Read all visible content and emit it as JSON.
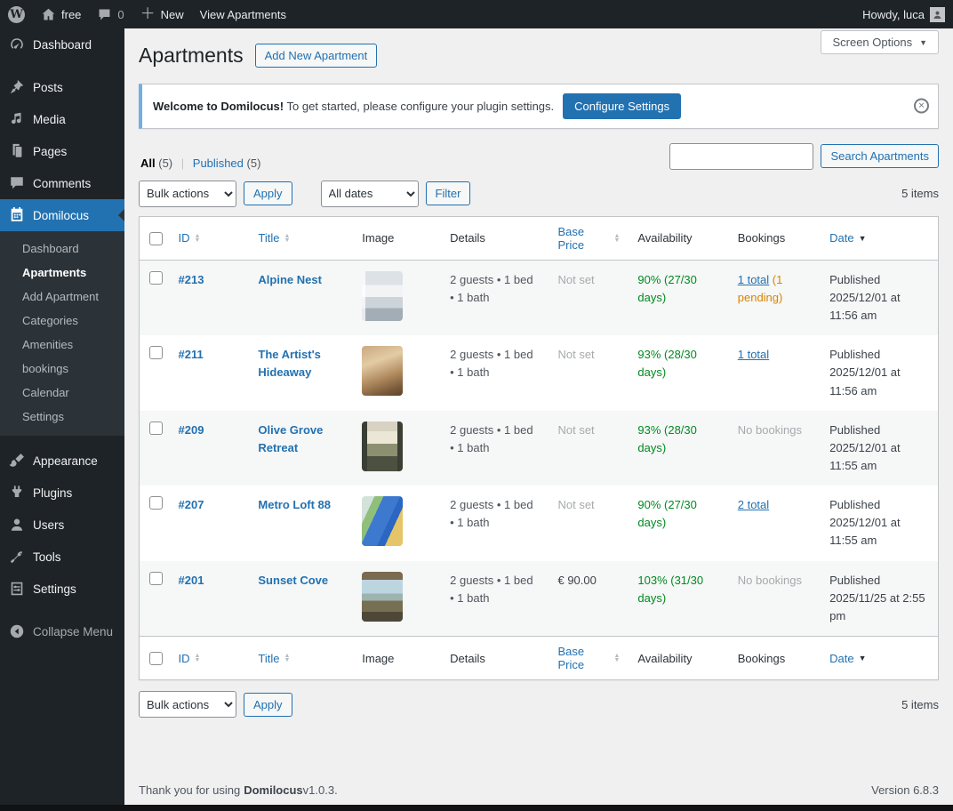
{
  "admin_bar": {
    "site_name": "free",
    "comment_count": "0",
    "new_label": "New",
    "view_apartments_label": "View Apartments",
    "howdy_text": "Howdy, luca"
  },
  "sidebar": {
    "top_items": [
      {
        "label": "Dashboard",
        "icon": "dashboard-icon",
        "active": false
      },
      {
        "label": "Posts",
        "icon": "pushpin-icon",
        "active": false
      },
      {
        "label": "Media",
        "icon": "media-icon",
        "active": false
      },
      {
        "label": "Pages",
        "icon": "pages-icon",
        "active": false
      },
      {
        "label": "Comments",
        "icon": "comments-icon",
        "active": false
      },
      {
        "label": "Domilocus",
        "icon": "calendar-icon",
        "active": true
      }
    ],
    "submenu_items": [
      {
        "label": "Dashboard",
        "active": false
      },
      {
        "label": "Apartments",
        "active": true
      },
      {
        "label": "Add Apartment",
        "active": false
      },
      {
        "label": "Categories",
        "active": false
      },
      {
        "label": "Amenities",
        "active": false
      },
      {
        "label": "bookings",
        "active": false
      },
      {
        "label": "Calendar",
        "active": false
      },
      {
        "label": "Settings",
        "active": false
      }
    ],
    "bottom_items": [
      {
        "label": "Appearance",
        "icon": "appearance-icon",
        "active": false
      },
      {
        "label": "Plugins",
        "icon": "plugins-icon",
        "active": false
      },
      {
        "label": "Users",
        "icon": "users-icon",
        "active": false
      },
      {
        "label": "Tools",
        "icon": "tools-icon",
        "active": false
      },
      {
        "label": "Settings",
        "icon": "settings-icon",
        "active": false
      }
    ],
    "collapse_label": "Collapse Menu"
  },
  "page": {
    "title": "Apartments",
    "add_new_button": "Add New Apartment",
    "screen_options_label": "Screen Options"
  },
  "notice": {
    "intro_bold": "Welcome to Domilocus!",
    "intro_text": "To get started, please configure your plugin settings.",
    "button_label": "Configure Settings"
  },
  "views": {
    "all_label": "All",
    "all_count": "(5)",
    "published_label": "Published",
    "published_count": "(5)"
  },
  "search": {
    "input_value": "",
    "button_label": "Search Apartments"
  },
  "tablenav": {
    "bulk_actions_label": "Bulk actions",
    "apply_label": "Apply",
    "all_dates_label": "All dates",
    "filter_label": "Filter",
    "items_count": "5 items"
  },
  "table": {
    "columns": [
      {
        "label": "ID",
        "sortable": true,
        "sorted": ""
      },
      {
        "label": "Title",
        "sortable": true,
        "sorted": ""
      },
      {
        "label": "Image",
        "sortable": false,
        "sorted": ""
      },
      {
        "label": "Details",
        "sortable": false,
        "sorted": ""
      },
      {
        "label": "Base Price",
        "sortable": true,
        "sorted": ""
      },
      {
        "label": "Availability",
        "sortable": false,
        "sorted": ""
      },
      {
        "label": "Bookings",
        "sortable": false,
        "sorted": ""
      },
      {
        "label": "Date",
        "sortable": true,
        "sorted": "desc"
      }
    ],
    "rows": [
      {
        "id": "#213",
        "title": "Alpine Nest",
        "image_alt": "bright white kitchen interior",
        "details": "2 guests • 1 bed • 1 bath",
        "base_price": "Not set",
        "base_price_set": false,
        "availability": "90% (27/30 days)",
        "bookings_total": "1 total",
        "bookings_pending": "(1 pending)",
        "bookings_link": true,
        "date_status": "Published",
        "date_value": "2025/12/01 at 11:56 am"
      },
      {
        "id": "#211",
        "title": "The Artist's Hideaway",
        "image_alt": "warm living room with shelves",
        "details": "2 guests • 1 bed • 1 bath",
        "base_price": "Not set",
        "base_price_set": false,
        "availability": "93% (28/30 days)",
        "bookings_total": "1 total",
        "bookings_pending": "",
        "bookings_link": true,
        "date_status": "Published",
        "date_value": "2025/12/01 at 11:56 am"
      },
      {
        "id": "#209",
        "title": "Olive Grove Retreat",
        "image_alt": "arched interior with plants",
        "details": "2 guests • 1 bed • 1 bath",
        "base_price": "Not set",
        "base_price_set": false,
        "availability": "93% (28/30 days)",
        "bookings_total": "No bookings",
        "bookings_pending": "",
        "bookings_link": false,
        "date_status": "Published",
        "date_value": "2025/12/01 at 11:55 am"
      },
      {
        "id": "#207",
        "title": "Metro Loft 88",
        "image_alt": "outdoor pool with city buildings",
        "details": "2 guests • 1 bed • 1 bath",
        "base_price": "Not set",
        "base_price_set": false,
        "availability": "90% (27/30 days)",
        "bookings_total": "2 total",
        "bookings_pending": "",
        "bookings_link": true,
        "date_status": "Published",
        "date_value": "2025/12/01 at 11:55 am"
      },
      {
        "id": "#201",
        "title": "Sunset Cove",
        "image_alt": "terrace with sea view",
        "details": "2 guests • 1 bed • 1 bath",
        "base_price": "€ 90.00",
        "base_price_set": true,
        "availability": "103% (31/30 days)",
        "bookings_total": "No bookings",
        "bookings_pending": "",
        "bookings_link": false,
        "date_status": "Published",
        "date_value": "2025/11/25 at 2:55 pm"
      }
    ]
  },
  "footer": {
    "thanks_prefix": "Thank you for using",
    "plugin_name": "Domilocus",
    "plugin_version": "v1.0.3.",
    "wp_version": "Version 6.8.3"
  },
  "colors": {
    "accent": "#2271b1",
    "sidebar_bg": "#1d2327",
    "success_green": "#008a20",
    "pending_orange": "#d98500",
    "muted_gray": "#a7aaad"
  }
}
